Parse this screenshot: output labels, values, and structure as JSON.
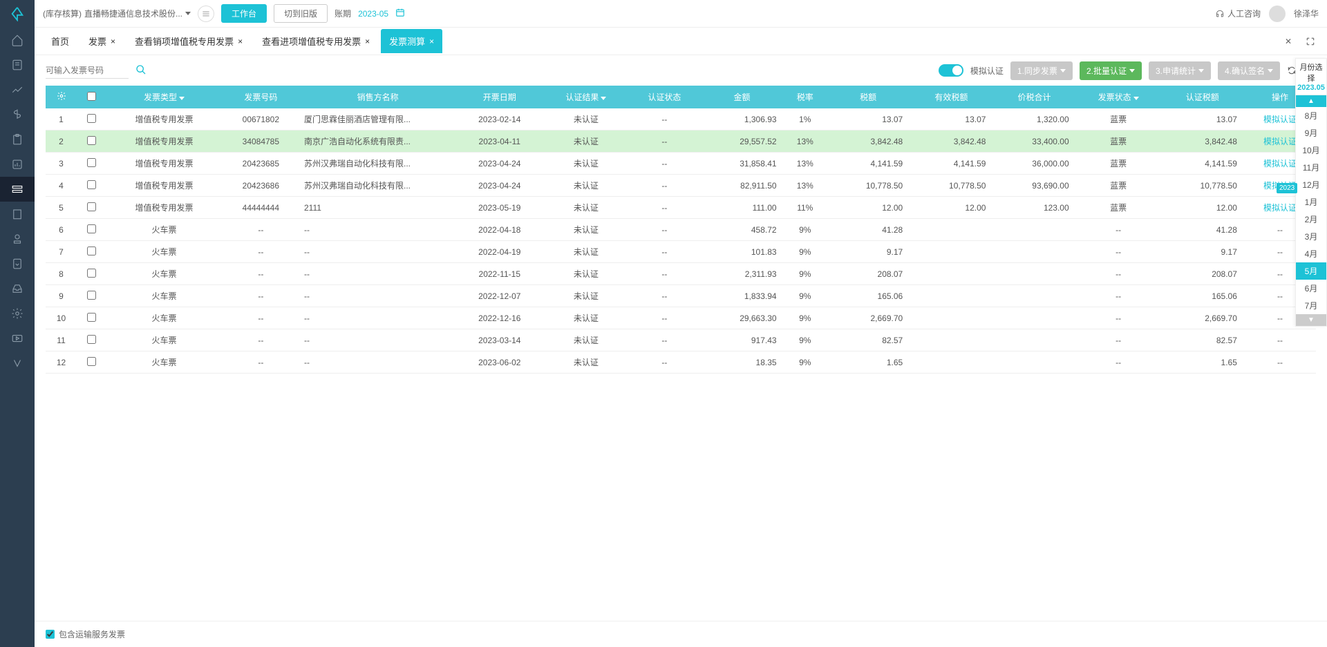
{
  "header": {
    "company_prefix": "(库存核算)",
    "company_name": "直播畅捷通信息技术股份...",
    "workspace_btn": "工作台",
    "switch_old_btn": "切到旧版",
    "period_label": "账期",
    "period_value": "2023-05",
    "support_label": "人工咨询",
    "user_name": "徐泽华"
  },
  "tabs": [
    {
      "label": "首页",
      "closable": false,
      "active": false
    },
    {
      "label": "发票",
      "closable": true,
      "active": false
    },
    {
      "label": "查看销项增值税专用发票",
      "closable": true,
      "active": false
    },
    {
      "label": "查看进项增值税专用发票",
      "closable": true,
      "active": false
    },
    {
      "label": "发票测算",
      "closable": true,
      "active": true
    }
  ],
  "toolbar": {
    "search_placeholder": "可输入发票号码",
    "toggle_label": "模拟认证",
    "step1": "1.同步发票",
    "step2": "2.批量认证",
    "step3": "3.申请统计",
    "step4": "4.确认签名",
    "refresh": "刷新"
  },
  "table": {
    "columns": [
      "",
      "",
      "发票类型",
      "发票号码",
      "销售方名称",
      "开票日期",
      "认证结果",
      "认证状态",
      "金额",
      "税率",
      "税额",
      "有效税额",
      "价税合计",
      "发票状态",
      "认证税额",
      "操作"
    ],
    "gear_col": "⚙",
    "rows": [
      {
        "idx": 1,
        "type": "增值税专用发票",
        "number": "00671802",
        "seller": "厦门思霖佳丽酒店管理有限...",
        "date": "2023-02-14",
        "result": "未认证",
        "status": "--",
        "amount": "1,306.93",
        "rate": "1%",
        "tax": "13.07",
        "eff_tax": "13.07",
        "total": "1,320.00",
        "inv_status": "蓝票",
        "auth_tax": "13.07",
        "action": "模拟认证",
        "highlight": false
      },
      {
        "idx": 2,
        "type": "增值税专用发票",
        "number": "34084785",
        "seller": "南京广浩自动化系统有限责...",
        "date": "2023-04-11",
        "result": "未认证",
        "status": "--",
        "amount": "29,557.52",
        "rate": "13%",
        "tax": "3,842.48",
        "eff_tax": "3,842.48",
        "total": "33,400.00",
        "inv_status": "蓝票",
        "auth_tax": "3,842.48",
        "action": "模拟认证",
        "highlight": true
      },
      {
        "idx": 3,
        "type": "增值税专用发票",
        "number": "20423685",
        "seller": "苏州汉弗瑞自动化科技有限...",
        "date": "2023-04-24",
        "result": "未认证",
        "status": "--",
        "amount": "31,858.41",
        "rate": "13%",
        "tax": "4,141.59",
        "eff_tax": "4,141.59",
        "total": "36,000.00",
        "inv_status": "蓝票",
        "auth_tax": "4,141.59",
        "action": "模拟认证",
        "highlight": false
      },
      {
        "idx": 4,
        "type": "增值税专用发票",
        "number": "20423686",
        "seller": "苏州汉弗瑞自动化科技有限...",
        "date": "2023-04-24",
        "result": "未认证",
        "status": "--",
        "amount": "82,911.50",
        "rate": "13%",
        "tax": "10,778.50",
        "eff_tax": "10,778.50",
        "total": "93,690.00",
        "inv_status": "蓝票",
        "auth_tax": "10,778.50",
        "action": "模拟认证",
        "highlight": false
      },
      {
        "idx": 5,
        "type": "增值税专用发票",
        "number": "44444444",
        "seller": "2111",
        "date": "2023-05-19",
        "result": "未认证",
        "status": "--",
        "amount": "111.00",
        "rate": "11%",
        "tax": "12.00",
        "eff_tax": "12.00",
        "total": "123.00",
        "inv_status": "蓝票",
        "auth_tax": "12.00",
        "action": "模拟认证",
        "highlight": false
      },
      {
        "idx": 6,
        "type": "火车票",
        "number": "--",
        "seller": "--",
        "date": "2022-04-18",
        "result": "未认证",
        "status": "--",
        "amount": "458.72",
        "rate": "9%",
        "tax": "41.28",
        "eff_tax": "",
        "total": "",
        "inv_status": "--",
        "auth_tax": "41.28",
        "action": "--",
        "highlight": false
      },
      {
        "idx": 7,
        "type": "火车票",
        "number": "--",
        "seller": "--",
        "date": "2022-04-19",
        "result": "未认证",
        "status": "--",
        "amount": "101.83",
        "rate": "9%",
        "tax": "9.17",
        "eff_tax": "",
        "total": "",
        "inv_status": "--",
        "auth_tax": "9.17",
        "action": "--",
        "highlight": false
      },
      {
        "idx": 8,
        "type": "火车票",
        "number": "--",
        "seller": "--",
        "date": "2022-11-15",
        "result": "未认证",
        "status": "--",
        "amount": "2,311.93",
        "rate": "9%",
        "tax": "208.07",
        "eff_tax": "",
        "total": "",
        "inv_status": "--",
        "auth_tax": "208.07",
        "action": "--",
        "highlight": false
      },
      {
        "idx": 9,
        "type": "火车票",
        "number": "--",
        "seller": "--",
        "date": "2022-12-07",
        "result": "未认证",
        "status": "--",
        "amount": "1,833.94",
        "rate": "9%",
        "tax": "165.06",
        "eff_tax": "",
        "total": "",
        "inv_status": "--",
        "auth_tax": "165.06",
        "action": "--",
        "highlight": false
      },
      {
        "idx": 10,
        "type": "火车票",
        "number": "--",
        "seller": "--",
        "date": "2022-12-16",
        "result": "未认证",
        "status": "--",
        "amount": "29,663.30",
        "rate": "9%",
        "tax": "2,669.70",
        "eff_tax": "",
        "total": "",
        "inv_status": "--",
        "auth_tax": "2,669.70",
        "action": "--",
        "highlight": false
      },
      {
        "idx": 11,
        "type": "火车票",
        "number": "--",
        "seller": "--",
        "date": "2023-03-14",
        "result": "未认证",
        "status": "--",
        "amount": "917.43",
        "rate": "9%",
        "tax": "82.57",
        "eff_tax": "",
        "total": "",
        "inv_status": "--",
        "auth_tax": "82.57",
        "action": "--",
        "highlight": false
      },
      {
        "idx": 12,
        "type": "火车票",
        "number": "--",
        "seller": "--",
        "date": "2023-06-02",
        "result": "未认证",
        "status": "--",
        "amount": "18.35",
        "rate": "9%",
        "tax": "1.65",
        "eff_tax": "",
        "total": "",
        "inv_status": "--",
        "auth_tax": "1.65",
        "action": "--",
        "highlight": false
      }
    ]
  },
  "footer": {
    "checkbox_label": "包含运输服务发票"
  },
  "month_panel": {
    "title": "月份选择",
    "year": "2023.05",
    "year_badge": "2023",
    "months": [
      "8月",
      "9月",
      "10月",
      "11月",
      "12月",
      "1月",
      "2月",
      "3月",
      "4月",
      "5月",
      "6月",
      "7月"
    ],
    "current_index": 9
  },
  "colors": {
    "primary": "#1dc2d6",
    "sidebar_bg": "#2c3e50",
    "table_header": "#50c8d8",
    "highlight_row": "#d4f3d4",
    "green_btn": "#5cb85c",
    "disabled_btn": "#c8c8c8"
  }
}
